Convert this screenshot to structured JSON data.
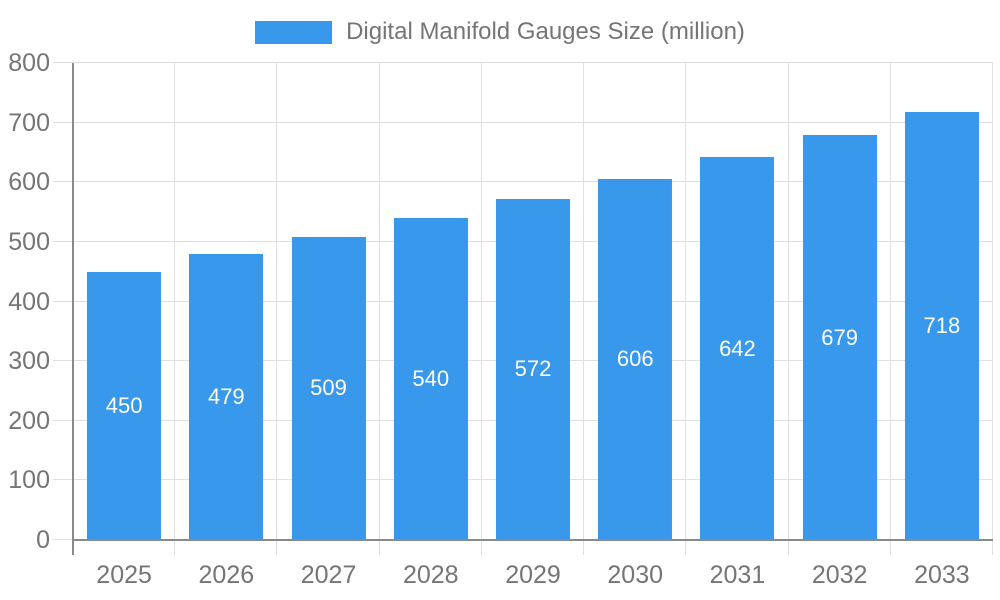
{
  "legend": {
    "swatch_color": "#3898ec"
  },
  "chart_data": {
    "type": "bar",
    "title": "Digital Manifold Gauges Size (million)",
    "categories": [
      "2025",
      "2026",
      "2027",
      "2028",
      "2029",
      "2030",
      "2031",
      "2032",
      "2033"
    ],
    "values": [
      450,
      479,
      509,
      540,
      572,
      606,
      642,
      679,
      718
    ],
    "xlabel": "",
    "ylabel": "",
    "ylim": [
      0,
      800
    ],
    "y_ticks": [
      0,
      100,
      200,
      300,
      400,
      500,
      600,
      700,
      800
    ],
    "grid": true,
    "legend_position": "top",
    "bar_color": "#3898ec",
    "value_label_color": "#ffffff",
    "axis_text_color": "#757575",
    "axis_line_color": "#8a8a8a",
    "gridline_color": "#e0e0e0",
    "background_color": "#ffffff"
  }
}
